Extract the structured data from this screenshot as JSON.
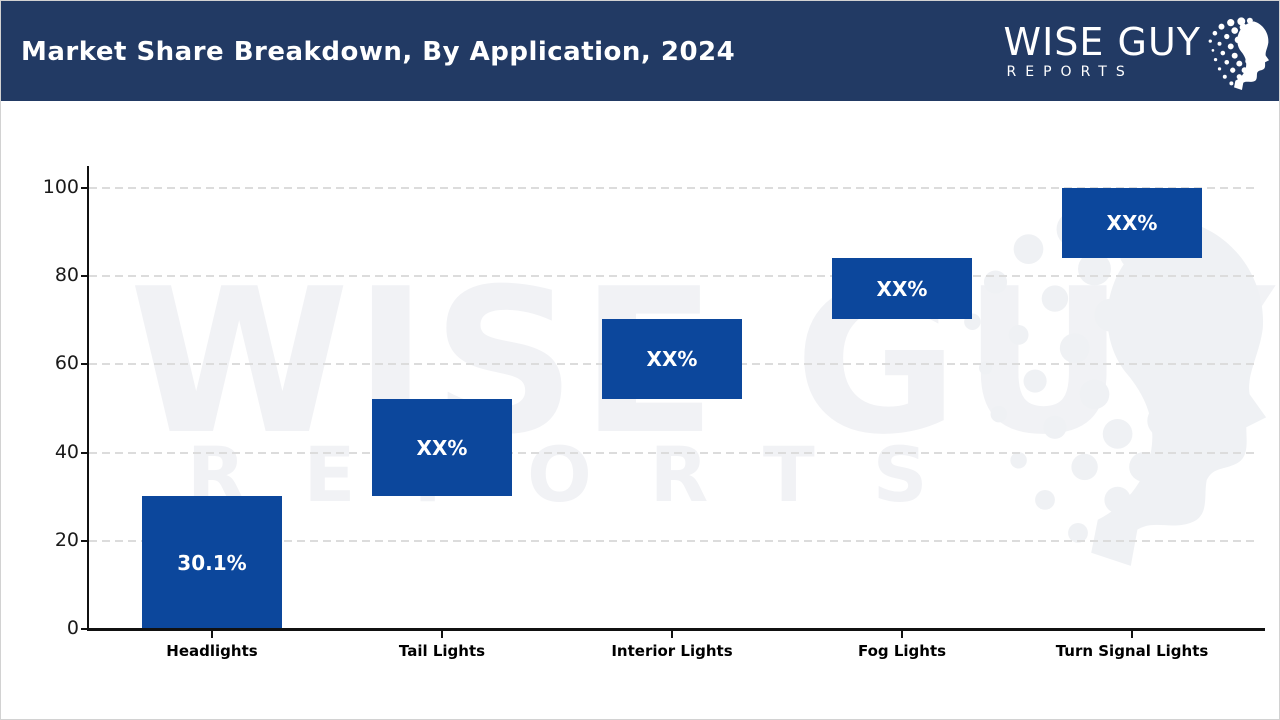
{
  "header": {
    "title": "Market Share Breakdown, By Application, 2024",
    "logo": {
      "wordmark": "WISE GUY",
      "subtext": "REPORTS"
    }
  },
  "watermark": {
    "wordmark": "WISE GUY",
    "subtext": "REPORTS"
  },
  "chart_data": {
    "type": "bar",
    "variant": "waterfall",
    "title": "Market Share Breakdown, By Application, 2024",
    "categories": [
      "Headlights",
      "Tail Lights",
      "Interior Lights",
      "Fog Lights",
      "Turn Signal Lights"
    ],
    "series": [
      {
        "name": "Market share (%)",
        "segments": [
          {
            "start": 0,
            "end": 30.1,
            "value": 30.1,
            "label": "30.1%"
          },
          {
            "start": 30.1,
            "end": 52.2,
            "value": 22.1,
            "label": "XX%"
          },
          {
            "start": 52.2,
            "end": 70.2,
            "value": 18.0,
            "label": "XX%"
          },
          {
            "start": 70.2,
            "end": 84.1,
            "value": 13.9,
            "label": "XX%"
          },
          {
            "start": 84.1,
            "end": 100,
            "value": 15.9,
            "label": "XX%"
          }
        ]
      }
    ],
    "xlabel": "",
    "ylabel": "",
    "ylim": [
      0,
      100
    ],
    "yticks": [
      0,
      20,
      40,
      60,
      80,
      100
    ],
    "grid": true,
    "grid_style": "dashed",
    "legend": false,
    "colors": {
      "bar": "#0c479c",
      "bar_label": "#ffffff",
      "header_bg": "#223a64",
      "gridline": "#dcdcdc",
      "axis": "#111111",
      "tick_label": "#1a1a1a"
    }
  }
}
